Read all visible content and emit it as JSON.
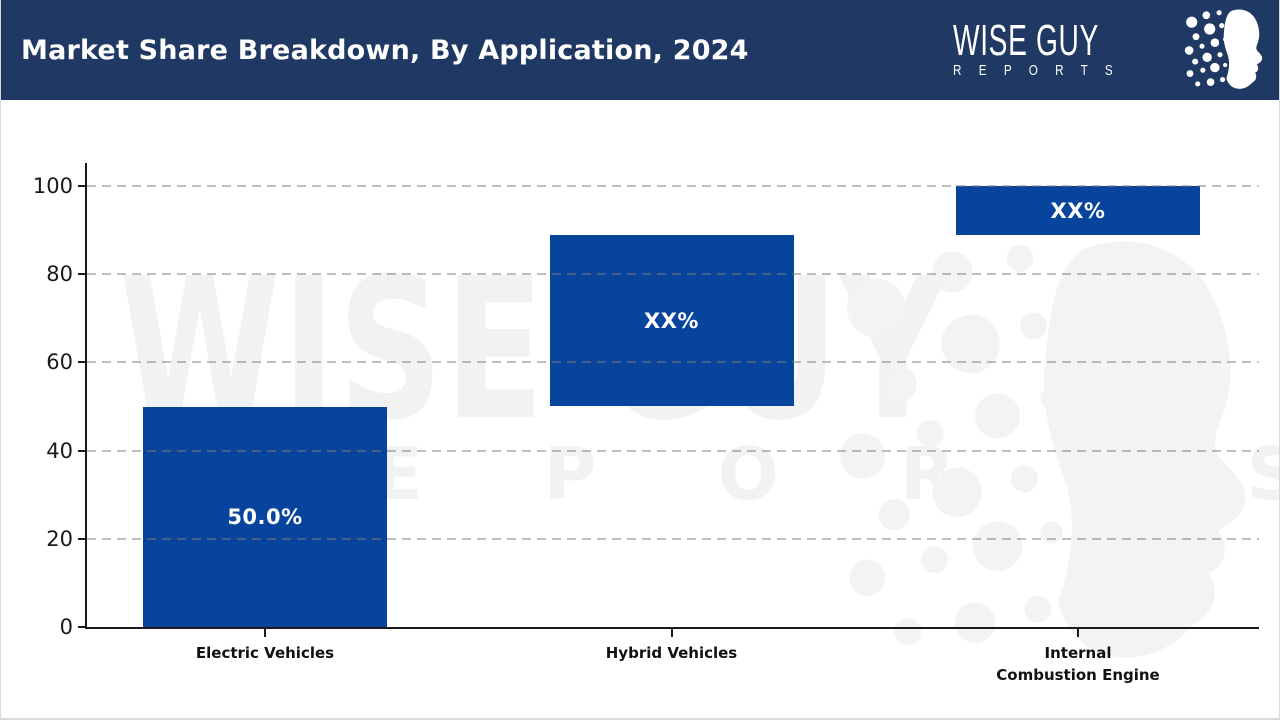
{
  "page": {
    "background": "#ffffff",
    "border_color": "#d9d9d9"
  },
  "header": {
    "bg_color": "#1f3864",
    "title": "Market Share Breakdown, By Application, 2024",
    "logo": {
      "line1": "WISE GUY",
      "line2": "R E P O R T S"
    }
  },
  "watermark": {
    "line1": "WISE GUY",
    "line2": "R E P O R T S"
  },
  "chart_data": {
    "type": "bar",
    "subtype": "floating-segment-waterfall",
    "title": "Market Share Breakdown, By Application, 2024",
    "categories": [
      "Electric Vehicles",
      "Hybrid Vehicles",
      "Internal\nCombustion Engine"
    ],
    "series": [
      {
        "name": "Electric Vehicles",
        "start": 0,
        "end": 50,
        "label": "50.0%"
      },
      {
        "name": "Hybrid Vehicles",
        "start": 50,
        "end": 88.8,
        "label": "XX%"
      },
      {
        "name": "Internal Combustion Engine",
        "start": 88.8,
        "end": 100,
        "label": "XX%"
      }
    ],
    "ylim": [
      0,
      100
    ],
    "yticks": [
      0,
      20,
      40,
      60,
      80,
      100
    ],
    "grid": {
      "axis": "y",
      "style": "dashed",
      "drawn_over_bars": true
    },
    "legend": "none",
    "bar_color": "#07449d",
    "bar_label_color": "#ffffff",
    "axis_color": "#1a1a1a",
    "tick_label_color": "#1a1a1a"
  }
}
